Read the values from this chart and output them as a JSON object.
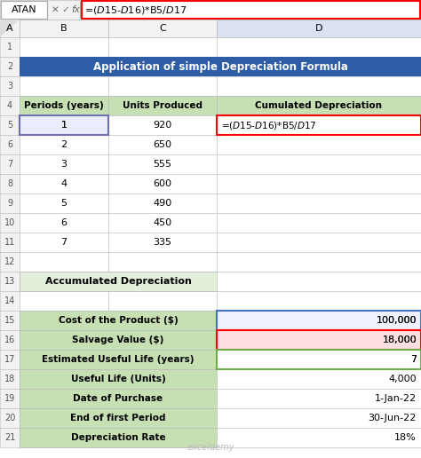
{
  "title": "Application of simple Depreciation Formula",
  "formula_bar_text": "=($D$15-$D$16)*B5/$D$17",
  "formula_bar_ref": "ATAN",
  "header_row": [
    "Periods (years)",
    "Units Produced",
    "Cumulated Depreciation"
  ],
  "data_rows": [
    [
      "1",
      "920",
      "=($D$15-$D$16)*B5/$D$17"
    ],
    [
      "2",
      "650",
      ""
    ],
    [
      "3",
      "555",
      ""
    ],
    [
      "4",
      "600",
      ""
    ],
    [
      "5",
      "490",
      ""
    ],
    [
      "6",
      "450",
      ""
    ],
    [
      "7",
      "335",
      ""
    ]
  ],
  "acc_dep_label": "Accumulated Depreciation",
  "lower_rows": [
    [
      "Cost of the Product ($)",
      "100,000"
    ],
    [
      "Salvage Value ($)",
      "18,000"
    ],
    [
      "Estimated Useful Life (years)",
      "7"
    ],
    [
      "Useful Life (Units)",
      "4,000"
    ],
    [
      "Date of Purchase",
      "1-Jan-22"
    ],
    [
      "End of first Period",
      "30-Jun-22"
    ],
    [
      "Depreciation Rate",
      "18%"
    ]
  ],
  "title_bg": "#2E5DA6",
  "title_fg": "#FFFFFF",
  "header_bg": "#C6E0B4",
  "acc_dep_bg": "#E2EFDA",
  "lower_label_bg": "#C6E0B4",
  "grid_color": "#C0C0C0",
  "col_header_bg": "#F2F2F2",
  "col_header_D_bg": "#D9E1F2",
  "row5_B_bg": "#ECECFF",
  "row5_B_border": "#7070B0",
  "row5_D_border": "#FF0000",
  "row15_D_border": "#4472C4",
  "row16_D_bg": "#FFE0E0",
  "row16_D_border": "#FF0000",
  "row17_D_border": "#70AD47",
  "formula_box_border": "#FF0000",
  "watermark": "exceldemy",
  "watermark_color": "#BBBBBB",
  "top_bar_bg": "#F2F2F2",
  "top_bar_border": "#D0D0D0",
  "namebox_bg": "#FFFFFF",
  "namebox_border": "#AAAAAA",
  "formula_bg": "#FFFFFF"
}
